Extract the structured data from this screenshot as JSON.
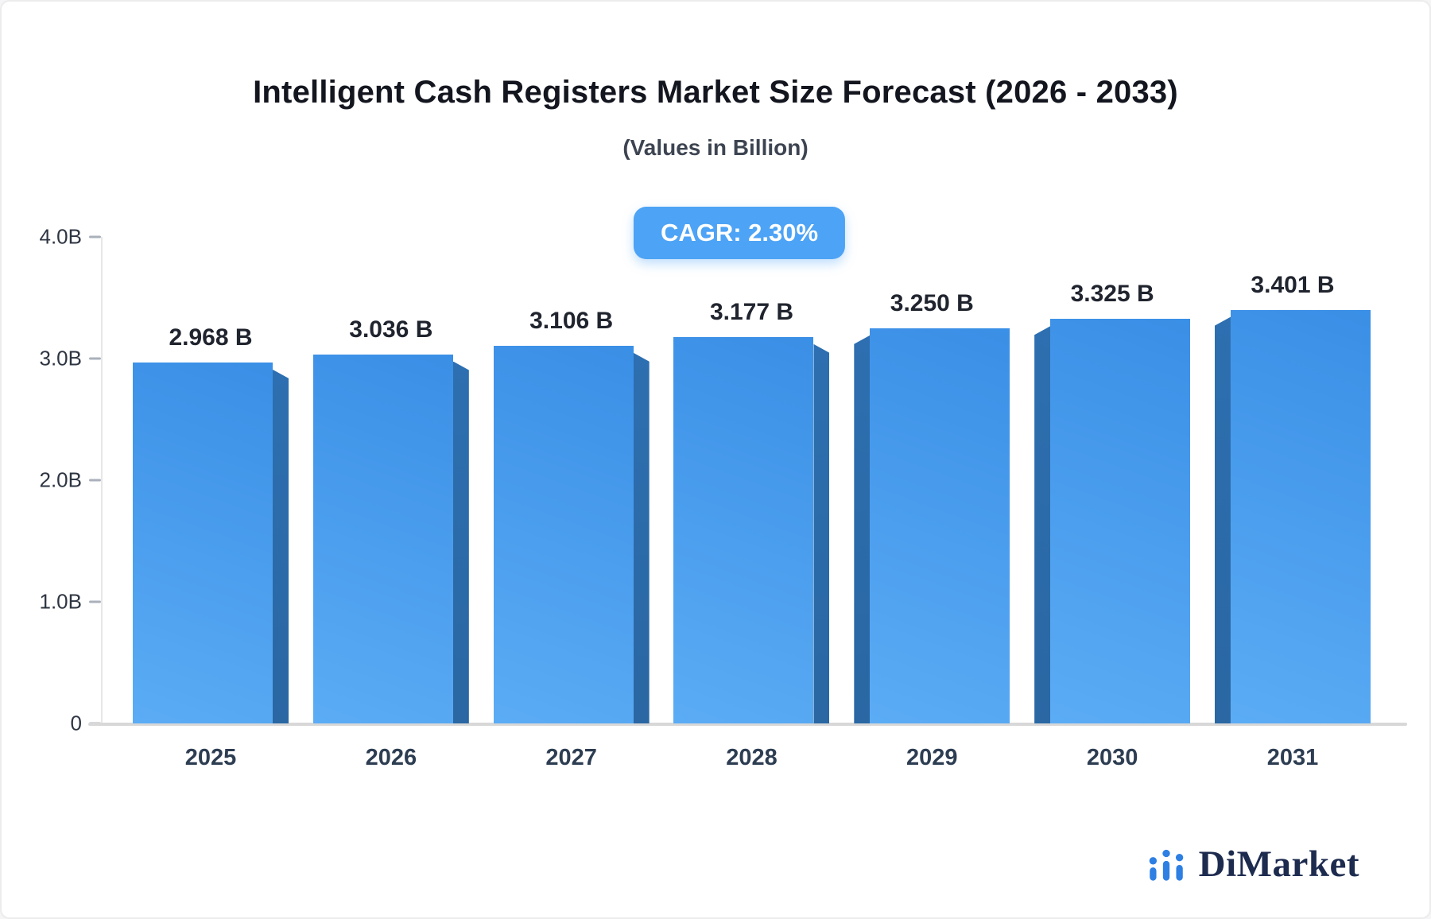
{
  "header": {
    "title": "Intelligent Cash Registers Market Size Forecast (2026 - 2033)",
    "subtitle": "(Values in Billion)",
    "cagr_badge": "CAGR: 2.30%"
  },
  "logo": {
    "text": "DiMarket"
  },
  "colors": {
    "badge_bg": "#4da3f5",
    "bar_gradient_top": "#3a8fe6",
    "bar_gradient_bottom": "#5bacf5",
    "bar_side": "#2d6fb0",
    "logo_blue": "#2e7fe3",
    "logo_text": "#1d2b4f"
  },
  "chart_data": {
    "type": "bar",
    "title": "Intelligent Cash Registers Market Size Forecast (2026 - 2033)",
    "subtitle": "(Values in Billion)",
    "categories": [
      "2025",
      "2026",
      "2027",
      "2028",
      "2029",
      "2030",
      "2031"
    ],
    "values": [
      2.968,
      3.036,
      3.106,
      3.177,
      3.25,
      3.325,
      3.401
    ],
    "value_labels": [
      "2.968 B",
      "3.036 B",
      "3.106 B",
      "3.177 B",
      "3.250 B",
      "3.325 B",
      "3.401 B"
    ],
    "xlabel": "",
    "ylabel": "",
    "ylim": [
      0,
      4.0
    ],
    "yticks": [
      {
        "label": "4.0B",
        "value": 4.0
      },
      {
        "label": "3.0B",
        "value": 3.0
      },
      {
        "label": "2.0B",
        "value": 2.0
      },
      {
        "label": "1.0B",
        "value": 1.0
      },
      {
        "label": "0",
        "value": 0.0
      }
    ],
    "grid": false,
    "legend": false,
    "annotation": "CAGR: 2.30%"
  }
}
